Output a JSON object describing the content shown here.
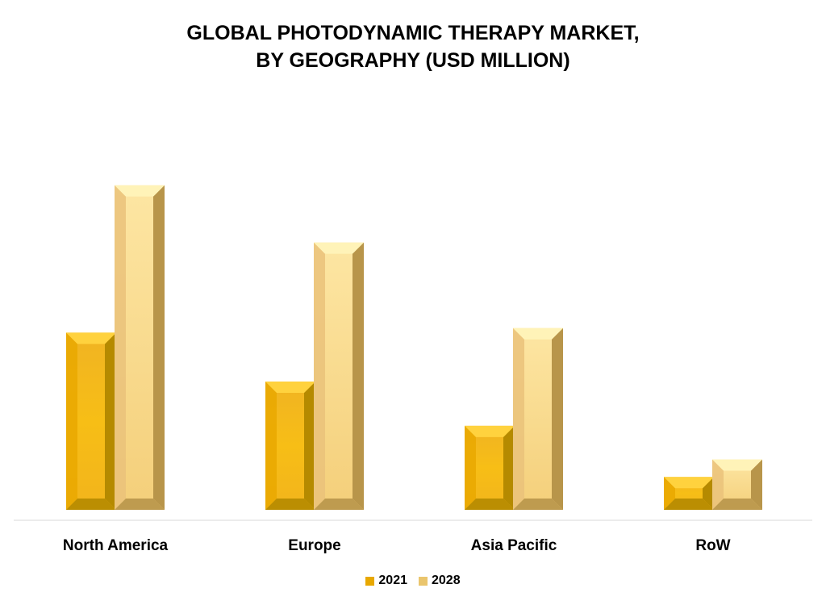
{
  "chart_data": {
    "type": "bar",
    "title": "GLOBAL PHOTODYNAMIC THERAPY MARKET, BY GEOGRAPHY (USD MILLION)",
    "title_lines": [
      "GLOBAL PHOTODYNAMIC THERAPY MARKET,",
      "BY GEOGRAPHY (USD MILLION)"
    ],
    "categories": [
      "North America",
      "Europe",
      "Asia Pacific",
      "RoW"
    ],
    "series": [
      {
        "name": "2021",
        "values": [
          232,
          168,
          110,
          43
        ],
        "color": "#F5B800"
      },
      {
        "name": "2028",
        "values": [
          425,
          350,
          238,
          66
        ],
        "color": "#F6D88A"
      }
    ],
    "ylim": [
      0,
      450
    ],
    "grid": false,
    "legend_position": "bottom"
  }
}
